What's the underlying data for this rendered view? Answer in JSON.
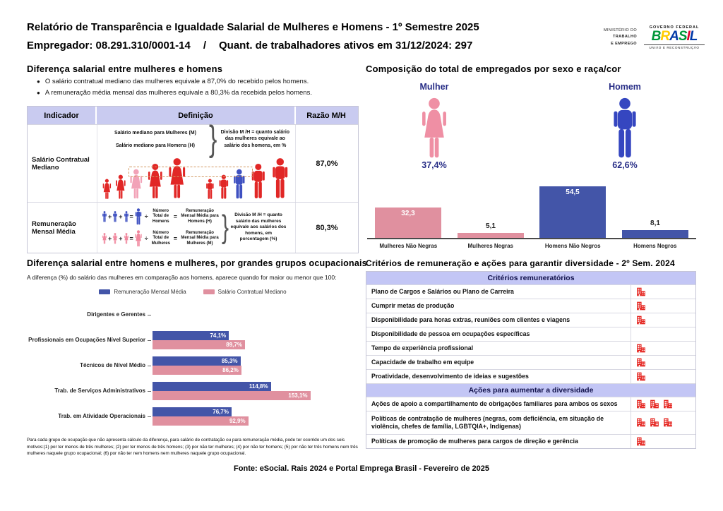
{
  "header": {
    "title": "Relatório de Transparência e Igualdade Salarial de Mulheres e Homens - 1º Semestre 2025",
    "employer": "Empregador: 08.291.310/0001-14",
    "separator": "/",
    "workers": "Quant. de trabalhadores ativos em 31/12/2024: 297",
    "ministry_line1": "MINISTÉRIO DO",
    "ministry_line2": "TRABALHO",
    "ministry_line3": "E EMPREGO",
    "gov_top": "GOVERNO FEDERAL",
    "gov_brand": "BRASIL",
    "gov_brand_colors": [
      "#009739",
      "#FFCC00",
      "#0038A8",
      "#009739",
      "#E4002B",
      "#0038A8"
    ],
    "gov_bottom": "UNIÃO E RECONSTRUÇÃO"
  },
  "salary_diff": {
    "title": "Diferença salarial entre mulheres e homens",
    "bullets": [
      "O salário contratual mediano das mulheres equivale a 87,0% do recebido pelos homens.",
      "A remuneração média mensal das mulheres equivale a 80,3% da recebida pelos homens."
    ],
    "table": {
      "headers": [
        "Indicador",
        "Definição",
        "Razão M/H"
      ],
      "row1": {
        "indicator": "Salário Contratual Mediano",
        "def_label_women": "Salário mediano para Mulheres (M)",
        "def_label_men": "Salário mediano para Homens (H)",
        "def_note": "Divisão M /H = quanto salário das mulheres equivale ao salário dos homens, em %",
        "ratio": "87,0%"
      },
      "row2": {
        "indicator": "Remuneração Mensal Média",
        "men_divisor": "Número Total de Homens",
        "men_result": "Remuneração Mensal Média para Homens (H)",
        "women_divisor": "Número Total de Mulheres",
        "women_result": "Remuneração Mensal Média para Mulheres (M)",
        "def_note": "Divisão M /H = quanto salário das mulheres equivale aos salários dos homens, em porcentagem (%)",
        "ratio": "80,3%"
      }
    }
  },
  "median_diagram": {
    "sizes": [
      30,
      36,
      44,
      52,
      60
    ],
    "highlight_index": 2,
    "base_color": "#e12726",
    "female_highlight_color": "#f2a3b8",
    "male_highlight_color": "#3f51c1"
  },
  "avg_diagram": {
    "men_color": "#3f51c1",
    "women_color": "#f0879d",
    "plus": "+",
    "equals": "=",
    "divide": "÷"
  },
  "composition": {
    "title": "Composição do total de empregados por sexo e raça/cor",
    "female_label": "Mulher",
    "female_pct": "37,4%",
    "female_color": "#ef8fa4",
    "male_label": "Homem",
    "male_pct": "62,6%",
    "male_color": "#3546c0"
  },
  "occupations": {
    "title": "Diferença salarial entre homens e mulheres, por grandes grupos ocupacionais",
    "subtitle": "A diferença (%) do salário das mulheres em comparação aos homens, aparece quando for maior ou menor que 100:",
    "footnote": "Para cada grupo de ocupação que não apresenta cálculo da diferença, para salário de contratação ou para remuneração média, pode ter ocorrido um dos seis motivos:(1) por ter menos de três mulheres; (2) por ter menos de três homens; (3) por não ter mulheres; (4) por não ter homens; (5) por não ter três homens nem três mulheres naquele grupo ocupacional; (6) por não ter nem homens nem mulheres naquele grupo ocupacional."
  },
  "criteria": {
    "title": "Critérios de remuneração e ações para garantir diversidade - 2º Sem. 2024",
    "group1_header": "Critérios remuneratórios",
    "group1_rows": [
      {
        "label": "Plano de Cargos e Salários ou Plano de Carreira",
        "icons": 1
      },
      {
        "label": "Cumprir metas de produção",
        "icons": 1
      },
      {
        "label": "Disponibilidade para horas extras, reuniões com clientes e viagens",
        "icons": 1
      },
      {
        "label": "Disponibilidade de pessoa em ocupações específicas",
        "icons": 0
      },
      {
        "label": "Tempo de experiência profissional",
        "icons": 1
      },
      {
        "label": "Capacidade de trabalho em equipe",
        "icons": 1
      },
      {
        "label": "Proatividade, desenvolvimento de ideias e sugestões",
        "icons": 1
      }
    ],
    "group2_header": "Ações para aumentar a diversidade",
    "group2_rows": [
      {
        "label": "Ações de apoio a compartilhamento de obrigações familiares para ambos os sexos",
        "icons": 3
      },
      {
        "label": "Políticas de contratação de mulheres (negras, com deficiência, em situação de violência, chefes de família, LGBTQIA+, Indígenas)",
        "icons": 3
      },
      {
        "label": "Políticas de promoção de mulheres para cargos de direção e gerência",
        "icons": 1
      }
    ]
  },
  "footer": {
    "source": "Fonte: eSocial. Rais 2024 e Portal Emprega Brasil - Fevereiro de 2025"
  },
  "colors": {
    "pink": "#e0909f",
    "blue": "#4355a8",
    "navy": "#272d86",
    "icon_red": "#e52520",
    "lavender": "#c9cbf0"
  },
  "chart_data": [
    {
      "type": "bar",
      "title": "Composição do total de empregados por sexo e raça/cor",
      "categories": [
        "Mulheres Não Negras",
        "Mulheres Negras",
        "Homens Não Negros",
        "Homens Negros"
      ],
      "values": [
        32.3,
        5.1,
        54.5,
        8.1
      ],
      "value_labels": [
        "32,3",
        "5,1",
        "54,5",
        "8,1"
      ],
      "bar_colors": [
        "#e0909f",
        "#e0909f",
        "#4355a8",
        "#4355a8"
      ],
      "xlabel": "",
      "ylabel": "",
      "ylim": [
        0,
        65
      ],
      "grid": false,
      "legend": false
    },
    {
      "type": "bar",
      "orientation": "horizontal",
      "title": "Diferença salarial entre homens e mulheres, por grandes grupos ocupacionais",
      "categories": [
        "Dirigentes e Gerentes",
        "Profissionais em Ocupações Nível Superior",
        "Técnicos de Nível Médio",
        "Trab. de Serviços Administrativos",
        "Trab. em Atividade Operacionais"
      ],
      "series": [
        {
          "name": "Remuneração Mensal Média",
          "color": "#4355a8",
          "values": [
            null,
            74.1,
            85.3,
            114.8,
            76.7
          ],
          "labels": [
            "",
            "74,1%",
            "85,3%",
            "114,8%",
            "76,7%"
          ]
        },
        {
          "name": "Salário Contratual Mediano",
          "color": "#e0909f",
          "values": [
            null,
            89.7,
            86.2,
            153.1,
            92.9
          ],
          "labels": [
            "",
            "89,7%",
            "86,2%",
            "153,1%",
            "92,9%"
          ]
        }
      ],
      "xlim": [
        0,
        200
      ],
      "grid": false,
      "legend_position": "top"
    }
  ]
}
